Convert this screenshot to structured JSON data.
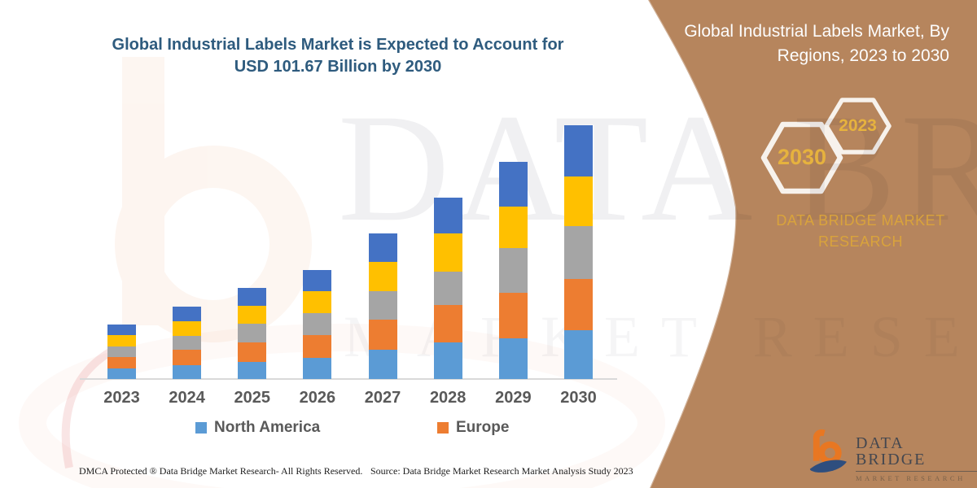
{
  "header": {
    "chart_title": "Global Industrial Labels Market is Expected to Account for USD 101.67 Billion by 2030",
    "banner_title": "Global Industrial Labels Market, By Regions, 2023 to 2030"
  },
  "badges": {
    "hexagon_large_year": "2030",
    "hexagon_small_year": "2023"
  },
  "brand": {
    "panel_text": "DATA BRIDGE MARKET RESEARCH",
    "logo_title": "DATA BRIDGE",
    "logo_subtitle": "MARKET RESEARCH"
  },
  "watermark": {
    "line1": "DATA BRIDGE",
    "line2": "MARKET RESEARCH"
  },
  "footer": {
    "left": "DMCA Protected ® Data Bridge Market Research-  All Rights Reserved.",
    "source": "Source: Data Bridge Market Research  Market Analysis Study 2023"
  },
  "colors": {
    "panel_brown": "#b6855d",
    "gold_text": "#d9a33c",
    "hex_year_gold": "#e6b23e",
    "title_blue": "#2e5b7e",
    "axis_gray": "#d9d9d9",
    "label_gray": "#595959",
    "north_america_blue": "#5b9bd5",
    "europe_orange": "#ed7d31",
    "gray_segment": "#a5a5a5",
    "yellow_segment": "#ffc000",
    "dark_blue_segment": "#4472c4"
  },
  "legend": [
    {
      "label": "North America",
      "color": "#5b9bd5"
    },
    {
      "label": "Europe",
      "color": "#ed7d31"
    }
  ],
  "chart_data": {
    "type": "bar",
    "stacked": true,
    "unit": "USD billion (estimated from bar heights)",
    "categories": [
      "2023",
      "2024",
      "2025",
      "2026",
      "2027",
      "2028",
      "2029",
      "2030"
    ],
    "series": [
      {
        "name": "North America",
        "color": "#5b9bd5",
        "values": [
          4.1,
          5.5,
          7.0,
          8.4,
          11.7,
          14.6,
          16.3,
          19.5
        ]
      },
      {
        "name": "Europe",
        "color": "#ed7d31",
        "values": [
          4.6,
          6.2,
          7.8,
          9.3,
          12.2,
          15.0,
          18.2,
          20.7
        ]
      },
      {
        "name": "unlabeled-gray-region",
        "color": "#a5a5a5",
        "values": [
          4.2,
          5.6,
          7.3,
          8.6,
          11.4,
          13.6,
          18.0,
          21.3
        ]
      },
      {
        "name": "unlabeled-yellow-region",
        "color": "#ffc000",
        "values": [
          4.7,
          6.0,
          7.4,
          8.8,
          11.8,
          15.2,
          16.8,
          19.8
        ]
      },
      {
        "name": "unlabeled-darkblue-region",
        "color": "#4472c4",
        "values": [
          4.3,
          5.6,
          7.2,
          8.6,
          11.2,
          14.4,
          17.9,
          20.4
        ]
      }
    ],
    "totals": [
      21.9,
      28.9,
      36.7,
      43.7,
      58.3,
      72.8,
      87.2,
      101.67
    ],
    "annotation": "2030 total stated as USD 101.67 Billion",
    "ylim": [
      0,
      105
    ],
    "grid": false,
    "legend_position": "bottom",
    "legend_visible_entries": [
      "North America",
      "Europe"
    ]
  }
}
